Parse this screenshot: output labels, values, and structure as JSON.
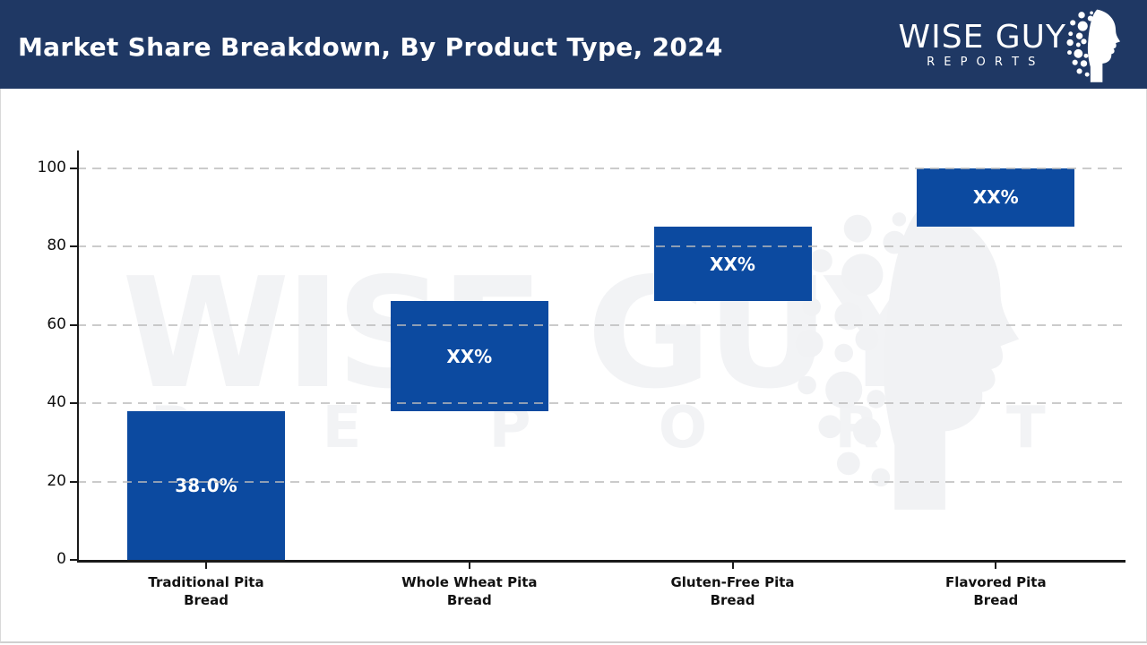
{
  "header": {
    "title": "Market Share Breakdown, By Product Type, 2024",
    "bg_color": "#1F3864",
    "logo": {
      "wordmark": "WISE GUY",
      "subtitle": "R E P O R T S"
    }
  },
  "watermark": {
    "wordmark": "WISE GUY",
    "subtitle": "R E P O R T S"
  },
  "chart_data": {
    "type": "bar",
    "subtype": "waterfall",
    "title": "Market Share Breakdown, By Product Type, 2024",
    "categories": [
      "Traditional Pita Bread",
      "Whole Wheat Pita Bread",
      "Gluten-Free Pita Bread",
      "Flavored Pita Bread"
    ],
    "segments": [
      {
        "label_lines": [
          "Traditional Pita",
          "Bread"
        ],
        "start": 0,
        "end": 38,
        "bar_label": "38.0%"
      },
      {
        "label_lines": [
          "Whole Wheat Pita",
          "Bread"
        ],
        "start": 38,
        "end": 66,
        "bar_label": "XX%"
      },
      {
        "label_lines": [
          "Gluten-Free Pita",
          "Bread"
        ],
        "start": 66,
        "end": 85,
        "bar_label": "XX%"
      },
      {
        "label_lines": [
          "Flavored Pita",
          "Bread"
        ],
        "start": 85,
        "end": 100,
        "bar_label": "XX%"
      }
    ],
    "xlabel": "",
    "ylabel": "",
    "ylim": [
      0,
      100
    ],
    "yticks": [
      0,
      20,
      40,
      60,
      80,
      100
    ],
    "grid": "horizontal-dashed",
    "gridline_color": "#d9d9d9",
    "bar_color": "#0C4AA0",
    "bar_label_color": "#FFFFFF",
    "axis_color": "#1A1A1A"
  }
}
